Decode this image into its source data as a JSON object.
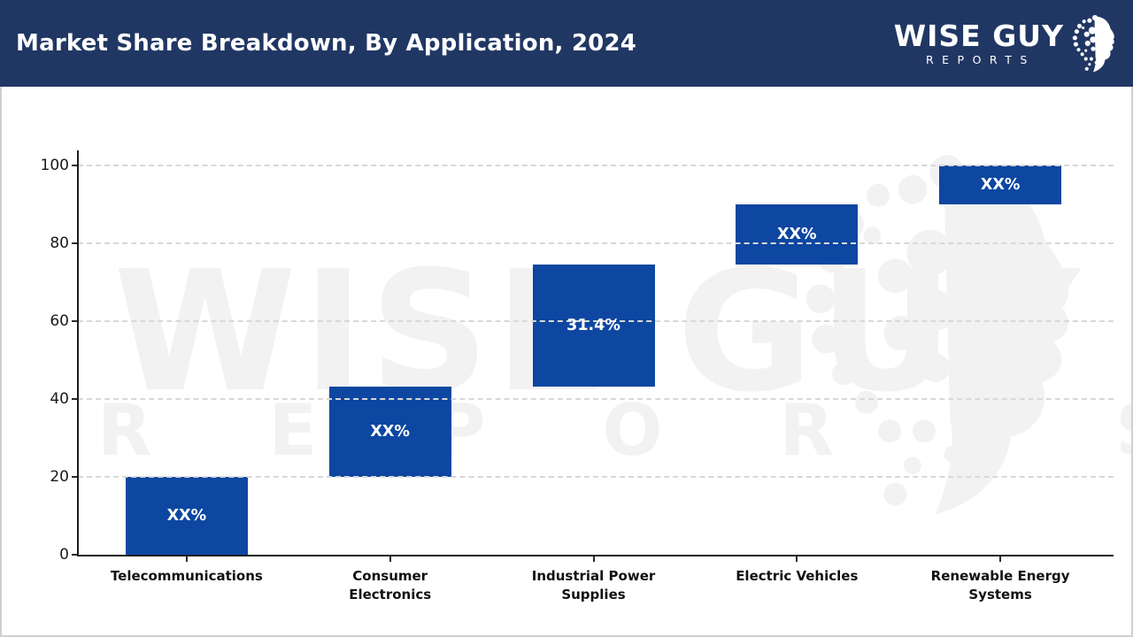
{
  "header": {
    "title": "Market Share Breakdown, By Application, 2024",
    "bg_color": "#213763",
    "logo": {
      "brand": "WISE GUY",
      "sub": "REPORTS"
    }
  },
  "watermark": {
    "line1": "WISE GUY",
    "line2": "R E P O R T S"
  },
  "chart_data": {
    "type": "bar",
    "variant": "waterfall",
    "title": "Market Share Breakdown, By Application, 2024",
    "categories": [
      "Telecommunications",
      "Consumer\nElectronics",
      "Industrial Power\nSupplies",
      "Electric Vehicles",
      "Renewable Energy\nSystems"
    ],
    "segments": [
      {
        "category": "Telecommunications",
        "start": 0,
        "end": 20,
        "value": 20,
        "label": "XX%"
      },
      {
        "category": "Consumer Electronics",
        "start": 20,
        "end": 43.2,
        "value": 23.2,
        "label": "XX%"
      },
      {
        "category": "Industrial Power Supplies",
        "start": 43.2,
        "end": 74.6,
        "value": 31.4,
        "label": "31.4%"
      },
      {
        "category": "Electric Vehicles",
        "start": 74.6,
        "end": 90,
        "value": 15.4,
        "label": "XX%"
      },
      {
        "category": "Renewable Energy Systems",
        "start": 90,
        "end": 100,
        "value": 10,
        "label": "XX%"
      }
    ],
    "ylim": [
      0,
      100
    ],
    "yticks": [
      0,
      20,
      40,
      60,
      80,
      100
    ],
    "bar_color": "#0D47A1",
    "grid": {
      "horizontal": true,
      "style": "dashed",
      "color": "#d8d8d8"
    },
    "legend": null,
    "xlabel": "",
    "ylabel": ""
  }
}
